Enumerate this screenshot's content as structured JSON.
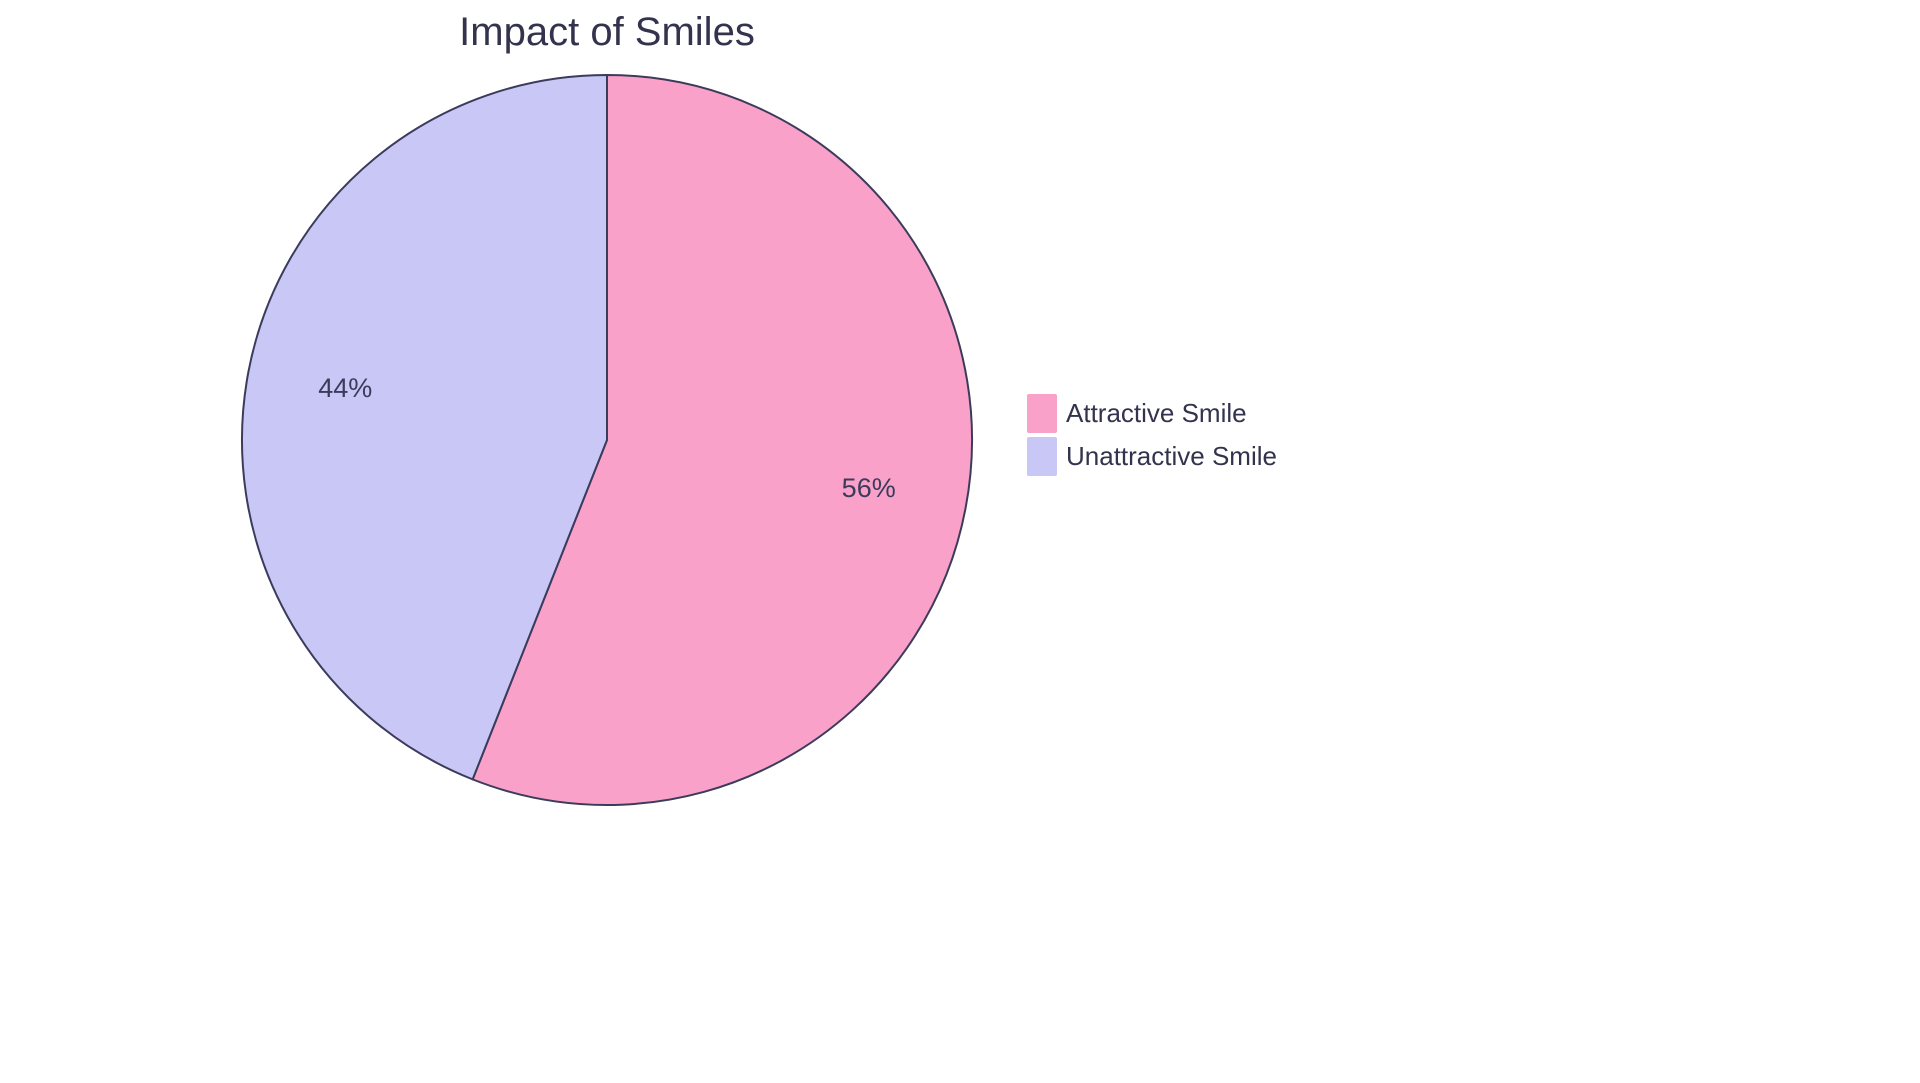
{
  "chart_data": {
    "type": "pie",
    "title": "Impact of Smiles",
    "series": [
      {
        "name": "Attractive Smile",
        "value": 56,
        "pct_label": "56%",
        "color": "#F9A1C9"
      },
      {
        "name": "Unattractive Smile",
        "value": 44,
        "pct_label": "44%",
        "color": "#C9C7F5"
      }
    ],
    "start_angle_deg": 0,
    "direction": "clockwise",
    "legend_position": "right",
    "stroke_color": "#3B3B5C",
    "label_color": "#3B3B5C",
    "title_color": "#33334E"
  }
}
